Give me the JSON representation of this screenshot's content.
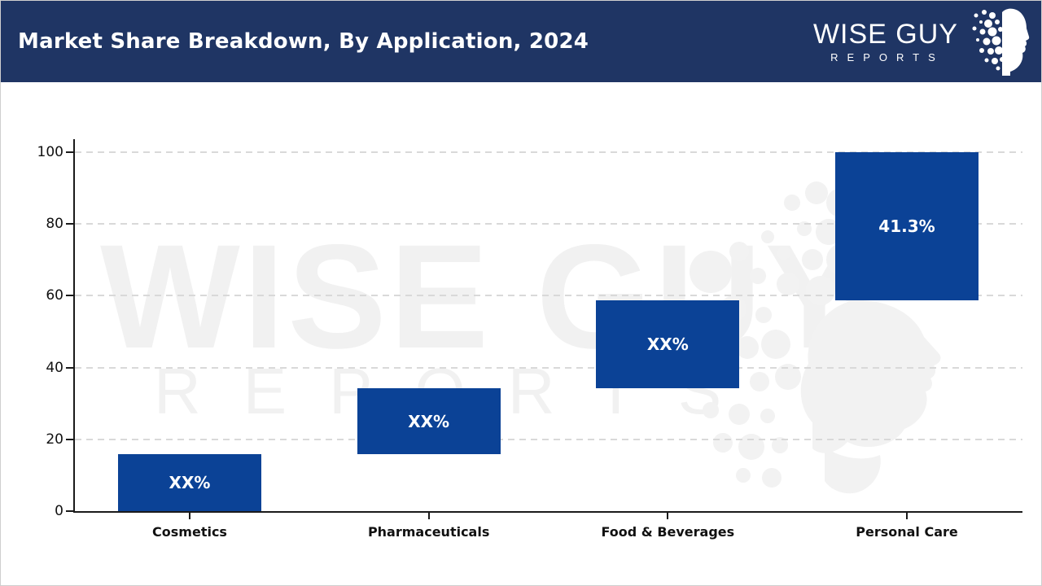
{
  "header": {
    "title": "Market Share Breakdown, By Application, 2024",
    "bg_color": "#1f3564",
    "logo": {
      "name": "WISE GUY",
      "sub": "REPORTS"
    }
  },
  "watermark": {
    "line1": "WISE GUY",
    "line2": "REPORTS"
  },
  "chart_data": {
    "type": "bar",
    "variant": "waterfall-floating-bars",
    "title": "Market Share Breakdown, By Application, 2024",
    "categories": [
      "Cosmetics",
      "Pharmaceuticals",
      "Food & Beverages",
      "Personal Care"
    ],
    "series": [
      {
        "name": "Market Share (%)",
        "segments": [
          {
            "category": "Cosmetics",
            "start": 0,
            "end": 15.8,
            "label": "XX%"
          },
          {
            "category": "Pharmaceuticals",
            "start": 15.8,
            "end": 34.2,
            "label": "XX%"
          },
          {
            "category": "Food & Beverages",
            "start": 34.2,
            "end": 58.7,
            "label": "XX%"
          },
          {
            "category": "Personal Care",
            "start": 58.7,
            "end": 100,
            "label": "41.3%"
          }
        ]
      }
    ],
    "yticks": [
      0,
      20,
      40,
      60,
      80,
      100
    ],
    "ylim": [
      0,
      105
    ],
    "xlabel": "",
    "ylabel": "",
    "legend": "none",
    "grid": {
      "horizontal": true,
      "style": "dashed",
      "color": "#d9d9d9"
    },
    "bar_color": "#0b4296",
    "bar_label_color": "#ffffff"
  }
}
